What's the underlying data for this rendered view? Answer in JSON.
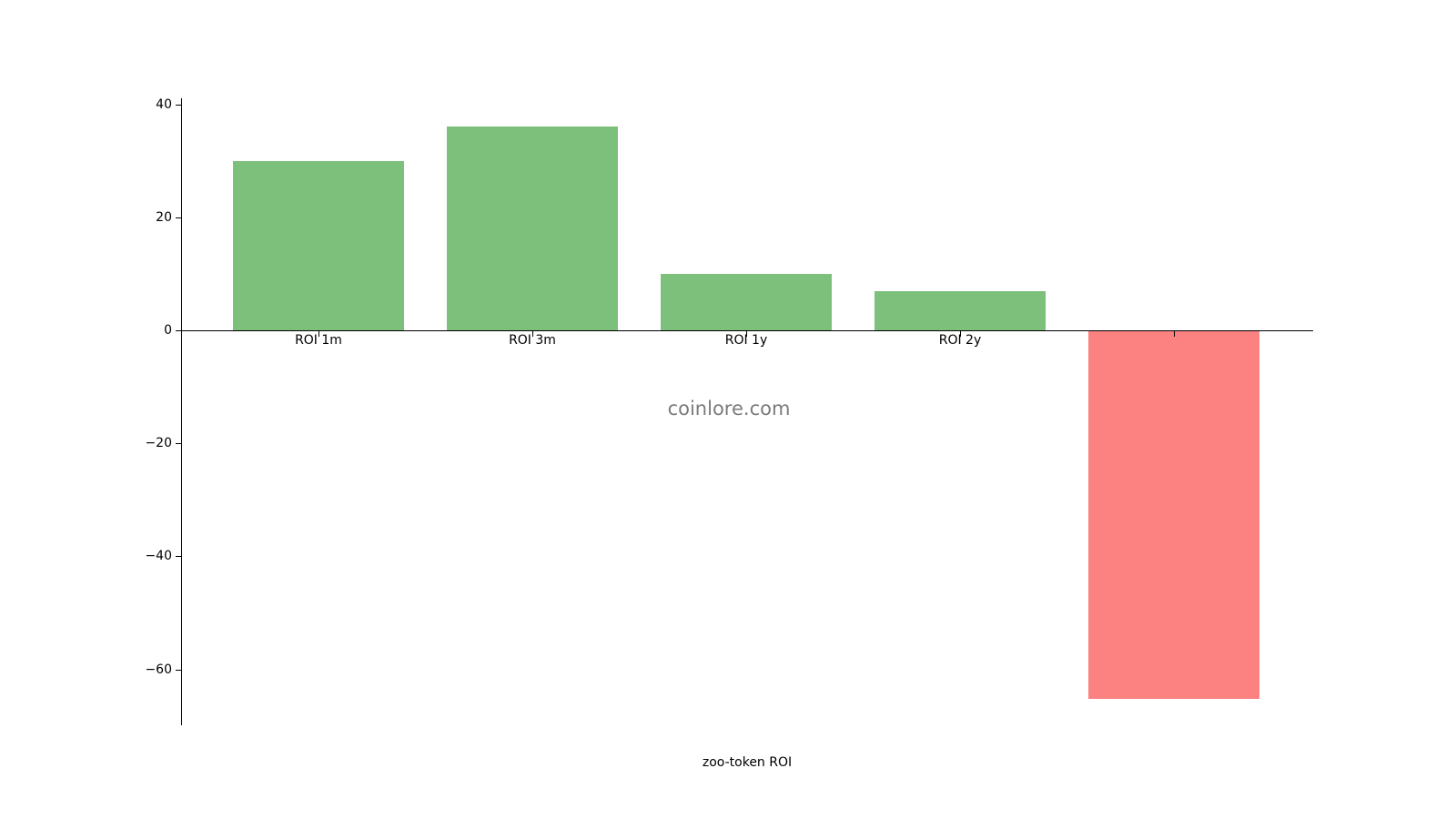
{
  "watermark_text": "coinlore.com",
  "xlabel_text": "zoo-token ROI",
  "colors": {
    "positive_bar": "#7cc07c",
    "negative_bar": "#fc8181",
    "axis": "#000000",
    "watermark": "#7b7b7b",
    "background": "#ffffff"
  },
  "chart_data": {
    "type": "bar",
    "title": "",
    "xlabel": "zoo-token ROI",
    "ylabel": "",
    "categories": [
      "ROI 1m",
      "ROI 3m",
      "ROI 1y",
      "ROI 2y",
      ""
    ],
    "values": [
      30,
      36,
      10,
      7,
      -65
    ],
    "bar_color_roles": [
      "positive",
      "positive",
      "positive",
      "positive",
      "negative"
    ],
    "yticks": [
      40,
      20,
      0,
      -20,
      -40,
      -60
    ],
    "ytick_labels": [
      "40",
      "20",
      "0",
      "−20",
      "−40",
      "−60"
    ],
    "ylim": [
      -70,
      41
    ],
    "grid": false,
    "legend_position": "none",
    "watermark": "coinlore.com",
    "annotations": []
  }
}
